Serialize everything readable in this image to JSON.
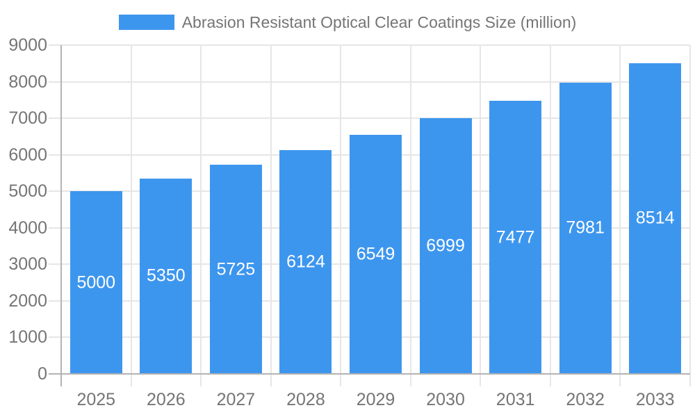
{
  "chart_data": {
    "type": "bar",
    "title": "Abrasion Resistant Optical Clear Coatings Size (million)",
    "categories": [
      "2025",
      "2026",
      "2027",
      "2028",
      "2029",
      "2030",
      "2031",
      "2032",
      "2033"
    ],
    "series": [
      {
        "name": "Abrasion Resistant Optical Clear Coatings Size (million)",
        "values": [
          5000,
          5350,
          5725,
          6124,
          6549,
          6999,
          7477,
          7981,
          8514
        ]
      }
    ],
    "value_labels": [
      "5000",
      "5350",
      "5725",
      "6124",
      "6549",
      "6999",
      "7477",
      "7981",
      "8514"
    ],
    "xlabel": "",
    "ylabel": "",
    "ylim": [
      0,
      9000
    ],
    "yticks": [
      0,
      1000,
      2000,
      3000,
      4000,
      5000,
      6000,
      7000,
      8000,
      9000
    ],
    "ytick_labels": [
      "0",
      "1000",
      "2000",
      "3000",
      "4000",
      "5000",
      "6000",
      "7000",
      "8000",
      "9000"
    ],
    "grid": true,
    "legend_position": "top-center",
    "colors": {
      "bar": "#3d96ee",
      "value_label": "#ffffff",
      "tick_label": "#757575",
      "title": "#757575",
      "gridline": "#e6e6e6",
      "axis_line": "#b3b3b3",
      "background": "#ffffff"
    }
  }
}
